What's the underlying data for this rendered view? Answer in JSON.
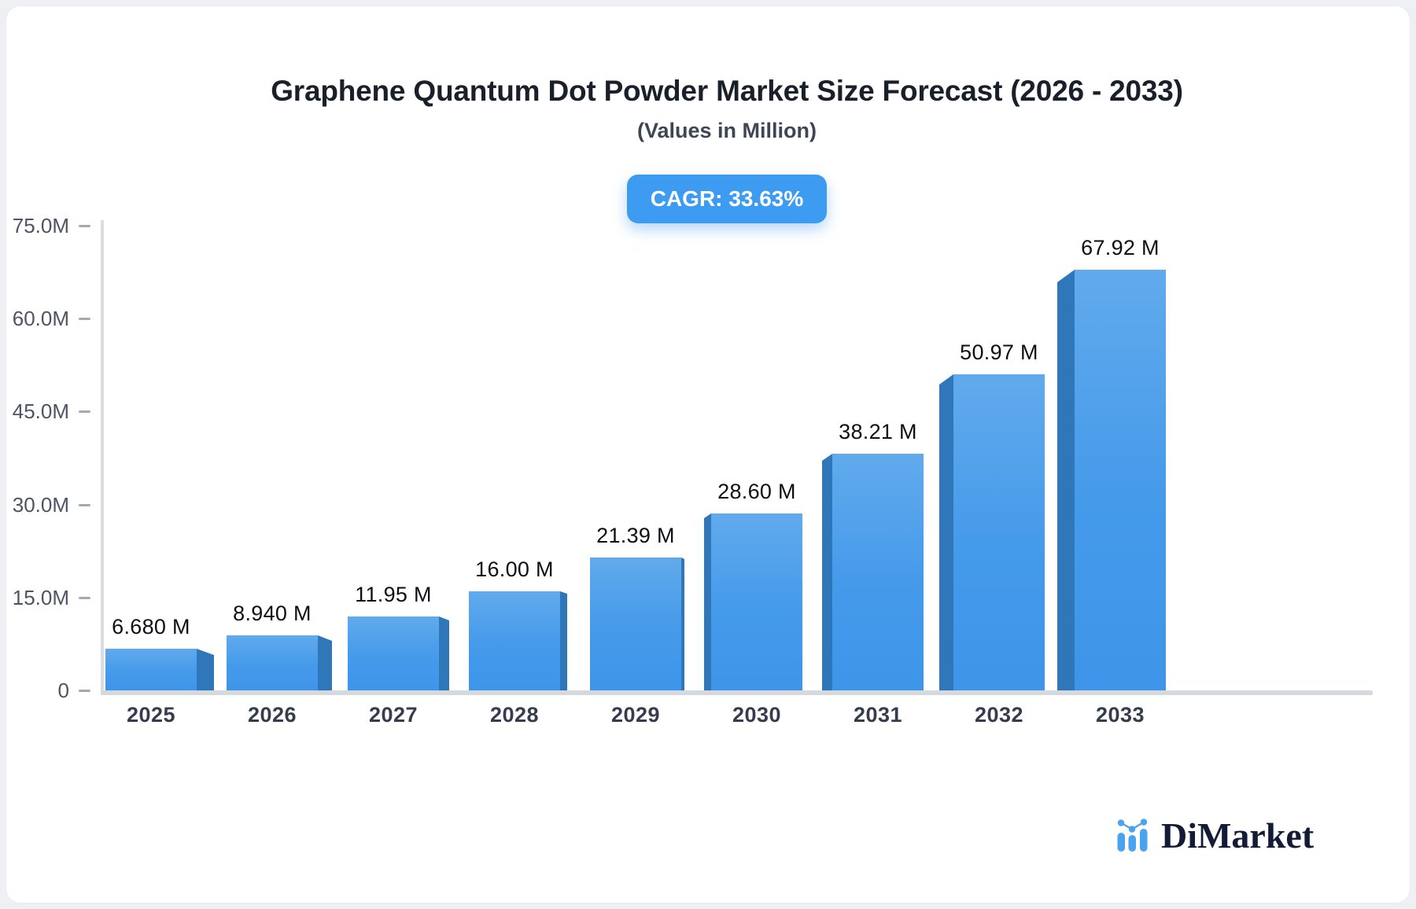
{
  "header": {
    "title": "Graphene Quantum Dot Powder Market Size Forecast (2026 - 2033)",
    "subtitle": "(Values in Million)",
    "cagr_badge": "CAGR: 33.63%"
  },
  "chart_data": {
    "type": "bar",
    "title": "Graphene Quantum Dot Powder Market Size Forecast (2026 - 2033)",
    "subtitle": "(Values in Million)",
    "annotation": "CAGR: 33.63%",
    "categories": [
      "2025",
      "2026",
      "2027",
      "2028",
      "2029",
      "2030",
      "2031",
      "2032",
      "2033"
    ],
    "values": [
      6.68,
      8.94,
      11.95,
      16.0,
      21.39,
      28.6,
      38.21,
      50.97,
      67.92
    ],
    "value_labels": [
      "6.680 M",
      "8.940 M",
      "11.95 M",
      "16.00 M",
      "21.39 M",
      "28.60 M",
      "38.21 M",
      "50.97 M",
      "67.92 M"
    ],
    "y_tick_labels": [
      "0",
      "15.0M",
      "30.0M",
      "45.0M",
      "60.0M",
      "75.0M"
    ],
    "ylim": [
      0,
      75
    ],
    "xlabel": "",
    "ylabel": "",
    "grid": false,
    "legend": "none",
    "bar_style": "3d-perspective"
  },
  "colors": {
    "bar_face_top": "#61aaec",
    "bar_face_bottom": "#3e95e9",
    "bar_side": "#2f77b8",
    "badge_background": "#3d9cf1",
    "badge_text": "#ffffff",
    "axis_line": "#d9dce1",
    "baseline": "#d5d8dd",
    "title_text": "#1a2029",
    "subtitle_text": "#3e4656",
    "y_label_text": "#4d5464",
    "x_label_text": "#343c4e",
    "value_label_text": "#0c0f15",
    "logo_blue": "#4aa3f1",
    "logo_text": "#121c36"
  },
  "branding": {
    "logo_text": "DiMarket"
  }
}
